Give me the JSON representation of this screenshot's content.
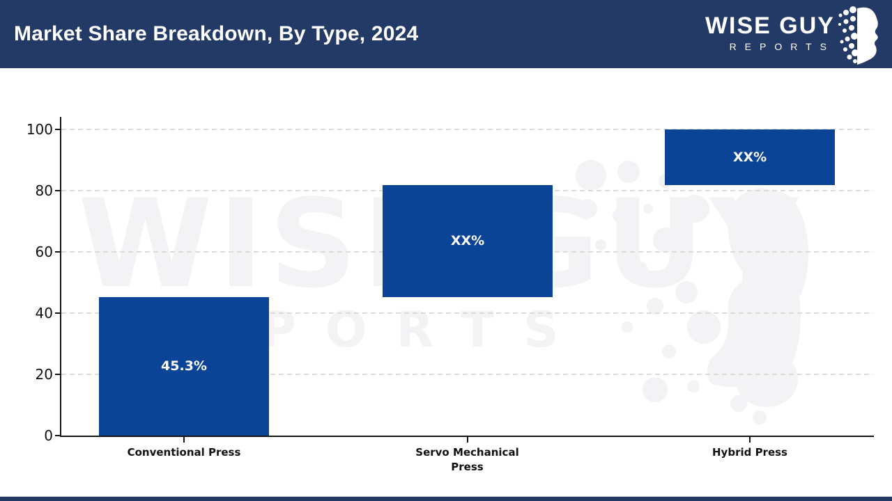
{
  "header": {
    "title": "Market Share Breakdown, By Type, 2024",
    "logo": {
      "line1": "WISE GUY",
      "line2": "REPORTS"
    }
  },
  "watermark": {
    "line1": "WISE GUY",
    "line2": "REPORTS"
  },
  "chart_data": {
    "type": "bar",
    "subtype": "floating-segment-waterfall",
    "title": "Market Share Breakdown, By Type, 2024",
    "categories": [
      "Conventional Press",
      "Servo Mechanical Press",
      "Hybrid Press"
    ],
    "segments": [
      {
        "category": "Conventional Press",
        "start": 0,
        "end": 45.3,
        "value": 45.3,
        "label": "45.3%"
      },
      {
        "category": "Servo Mechanical Press",
        "start": 45.3,
        "end": 81.8,
        "value": 36.5,
        "label": "XX%"
      },
      {
        "category": "Hybrid Press",
        "start": 81.8,
        "end": 100,
        "value": 18.2,
        "label": "XX%"
      }
    ],
    "yticks": [
      0,
      20,
      40,
      60,
      80,
      100
    ],
    "ylim": [
      0,
      104
    ],
    "xlabel": "",
    "ylabel": "",
    "grid": "horizontal-dashed",
    "legend": "none",
    "bar_color": "#0b4396",
    "bar_label_color": "#ffffff"
  },
  "colors": {
    "header_bg": "#243a66",
    "bar": "#0b4396",
    "gridline": "#dcdcdc",
    "axis": "#141414",
    "watermark": "#f3f3f5",
    "footer_bar": "#243a66"
  }
}
